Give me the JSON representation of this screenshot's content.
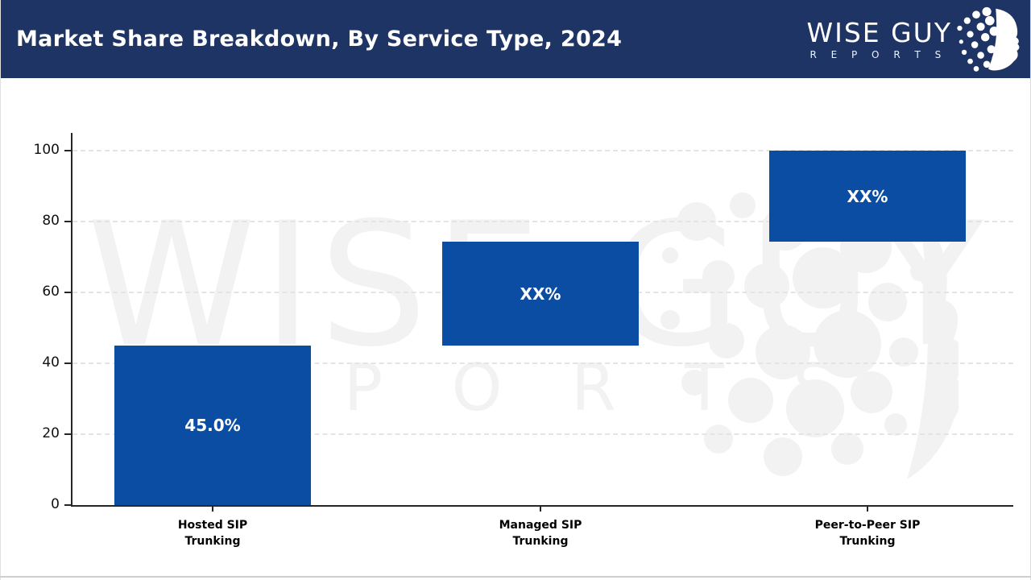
{
  "header": {
    "title": "Market Share Breakdown, By Service Type, 2024",
    "logo": {
      "line1": "WISE GUY",
      "line2": "R E P O R T S"
    }
  },
  "watermark": {
    "line1": "WISE GUY",
    "line2": "R E P O R T S"
  },
  "chart_data": {
    "type": "bar",
    "subtype": "waterfall",
    "title": "Market Share Breakdown, By Service Type, 2024",
    "xlabel": "",
    "ylabel": "",
    "units": "%",
    "categories": [
      [
        "Hosted SIP",
        "Trunking"
      ],
      [
        "Managed SIP",
        "Trunking"
      ],
      [
        "Peer-to-Peer SIP",
        "Trunking"
      ]
    ],
    "segments": [
      {
        "category": "Hosted SIP Trunking",
        "start": 0,
        "end": 45,
        "label": "45.0%"
      },
      {
        "category": "Managed SIP Trunking",
        "start": 45,
        "end": 74.3,
        "label": "XX%"
      },
      {
        "category": "Peer-to-Peer SIP Trunking",
        "start": 74.3,
        "end": 100,
        "label": "XX%"
      }
    ],
    "yticks": [
      0,
      20,
      40,
      60,
      80,
      100
    ],
    "ylim": [
      0,
      105
    ],
    "grid": "horizontal-dashed",
    "legend": "none",
    "bar_color": "#0b4da2",
    "bar_label_color": "#ffffff",
    "grid_color": "#e4e4e4",
    "axis_color": "#262626",
    "header_bg_color": "#1e3464",
    "watermark_color": "#f2f2f2"
  }
}
